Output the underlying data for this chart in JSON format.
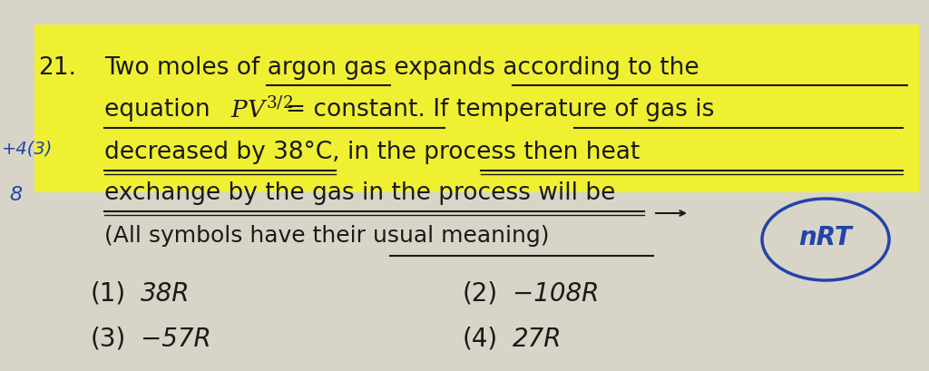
{
  "bg_color": "#d8d5c8",
  "highlight_color": "#f0f032",
  "text_color": "#111111",
  "ink_color": "#1a1a1a",
  "hand_color": "#2244aa",
  "fig_width": 10.24,
  "fig_height": 4.1,
  "dpi": 100,
  "q_num": "21.",
  "line1": "Two moles of argon gas expands according to the",
  "line2": "equation PV³² = constant. If temperature of gas is",
  "line3": "decreased by 38°C, in the process then heat",
  "line4": "exchange by the gas in the process will be",
  "line5": "(All symbols have their usual meaning)",
  "opt1": "(1)  38R",
  "opt2": "(2)  −108R",
  "opt3": "(3)  −57R",
  "opt4": "(4)  27R",
  "font_size_main": 19,
  "font_size_opt": 20
}
